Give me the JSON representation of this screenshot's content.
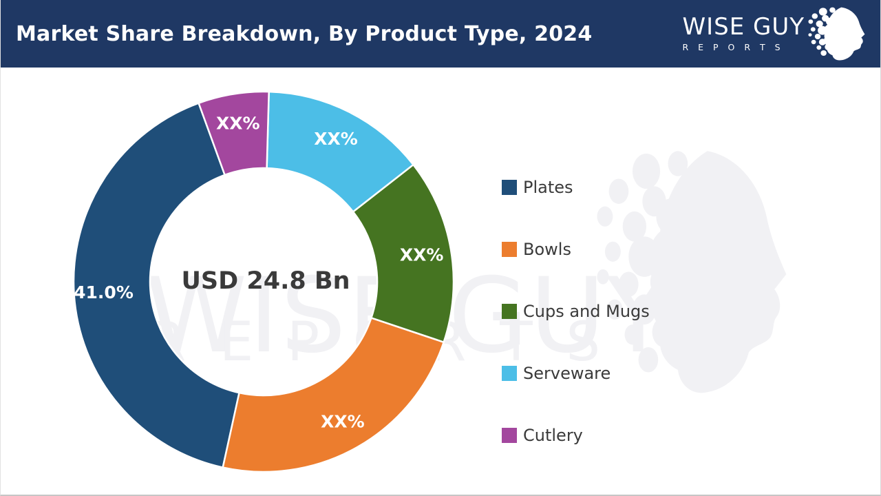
{
  "page": {
    "bg_color": "#FFFFFF",
    "border_color": "#C6C6C6"
  },
  "header": {
    "bg_color": "#1F3864",
    "title": "Market Share Breakdown, By Product Type, 2024",
    "logo": {
      "line1": "WISE GUY",
      "line2": "R E P O R T S"
    }
  },
  "watermark": {
    "line1": "WISE GUY",
    "line2": "R E P O R T S"
  },
  "chart_data": {
    "type": "pie",
    "subtype": "donut",
    "title": "Market Share Breakdown, By Product Type, 2024",
    "center_label": "USD 24.8 Bn",
    "start_angle_deg": 110,
    "direction": "counterclockwise",
    "categories": [
      "Plates",
      "Bowls",
      "Cups and Mugs",
      "Serveware",
      "Cutlery"
    ],
    "values": [
      41.0,
      23.3,
      15.7,
      14.0,
      6.0
    ],
    "slice_labels": [
      "41.0%",
      "XX%",
      "XX%",
      "XX%",
      "XX%"
    ],
    "colors": [
      "#1F4E79",
      "#EC7D2E",
      "#457421",
      "#4CBEE7",
      "#A3479E"
    ],
    "label_color": "#FFFFFF",
    "center_label_color": "#3A3A3A",
    "legend_position": "right",
    "legend_text_color": "#3A3A3A"
  }
}
